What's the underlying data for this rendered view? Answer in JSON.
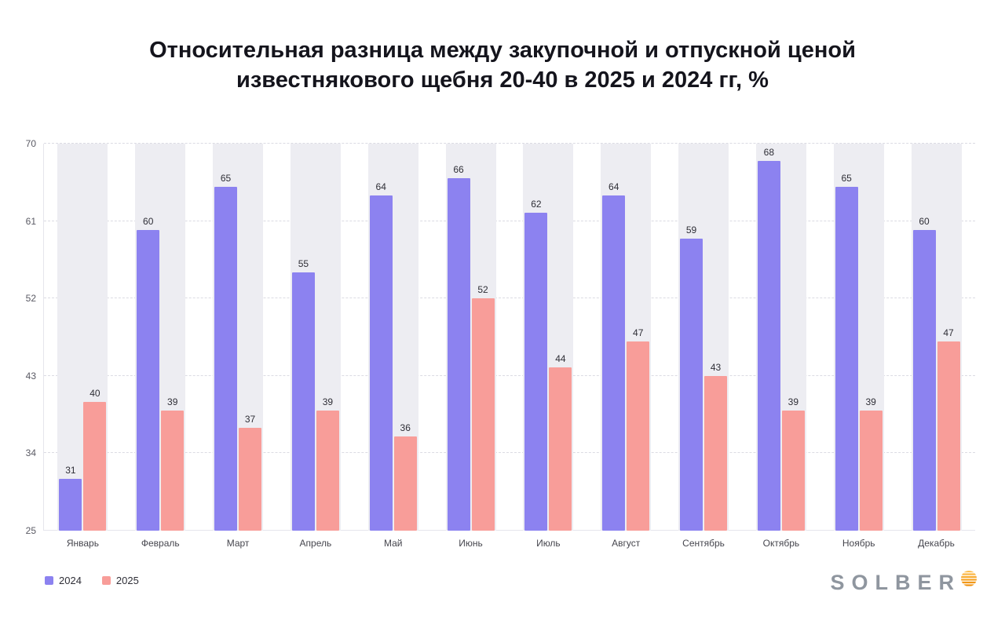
{
  "chart_data": {
    "type": "bar",
    "title": "Относительная разница между закупочной и отпускной ценой известнякового щебня 20-40 в 2025 и 2024 гг, %",
    "categories": [
      "Январь",
      "Февраль",
      "Март",
      "Апрель",
      "Май",
      "Июнь",
      "Июль",
      "Август",
      "Сентябрь",
      "Октябрь",
      "Ноябрь",
      "Декабрь"
    ],
    "series": [
      {
        "name": "2024",
        "color": "#8c82f0",
        "values": [
          31,
          60,
          65,
          55,
          64,
          66,
          62,
          64,
          59,
          68,
          65,
          60
        ]
      },
      {
        "name": "2025",
        "color": "#f89d99",
        "values": [
          40,
          39,
          37,
          39,
          36,
          52,
          44,
          47,
          43,
          39,
          39,
          47
        ]
      }
    ],
    "ylim": [
      25,
      70
    ],
    "y_ticks": [
      25,
      34,
      43,
      52,
      61,
      70
    ],
    "grid": "dashed-horizontal",
    "legend_position": "bottom-left",
    "column_band_color": "#ededf2"
  },
  "branding": {
    "logo_text": "SOLBER",
    "logo_accent_color": "#f39a1e"
  }
}
